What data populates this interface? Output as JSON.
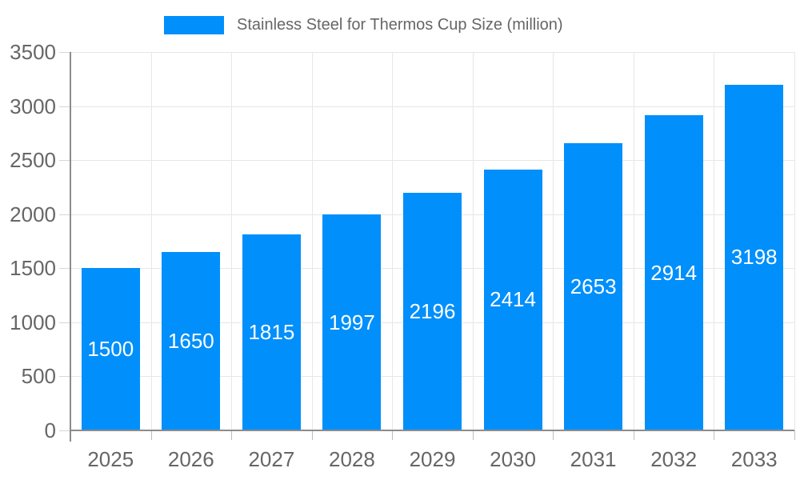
{
  "legend": {
    "label": "Stainless Steel for Thermos Cup Size (million)"
  },
  "colors": {
    "bar": "#008ffb",
    "axis_text": "#666666",
    "bar_label_text": "#ffffff",
    "gridline": "#e7e7e7",
    "axis_line": "#8b8b8b",
    "background": "#ffffff"
  },
  "chart_data": {
    "type": "bar",
    "title": "Stainless Steel for Thermos Cup Size (million)",
    "series_name": "Stainless Steel for Thermos Cup Size (million)",
    "categories": [
      "2025",
      "2026",
      "2027",
      "2028",
      "2029",
      "2030",
      "2031",
      "2032",
      "2033"
    ],
    "values": [
      1500,
      1650,
      1815,
      1997,
      2196,
      2414,
      2653,
      2914,
      3198
    ],
    "bar_labels": [
      "1500",
      "1650",
      "1815",
      "1997",
      "2196",
      "2414",
      "2653",
      "2914",
      "3198"
    ],
    "xlabel": "",
    "ylabel": "",
    "ylim": [
      0,
      3500
    ],
    "yticks": [
      0,
      500,
      1000,
      1500,
      2000,
      2500,
      3000,
      3500
    ],
    "grid": true,
    "legend_position": "top"
  }
}
